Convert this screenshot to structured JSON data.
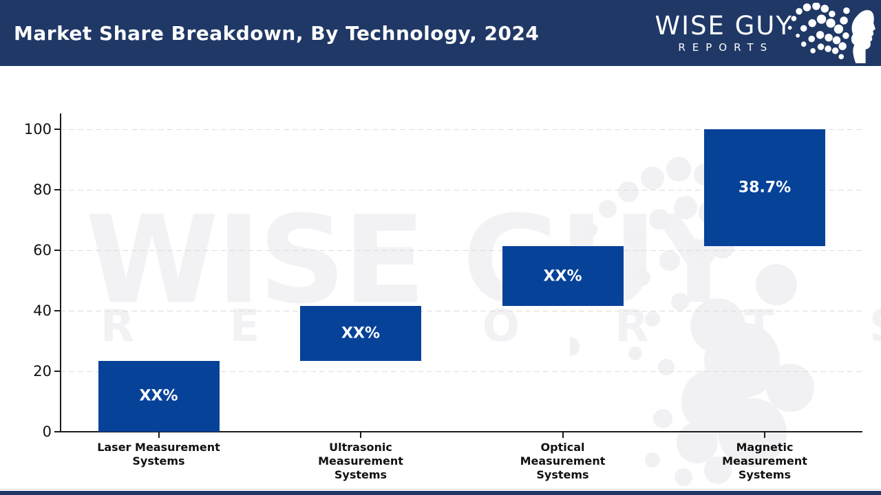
{
  "header": {
    "title": "Market Share Breakdown, By Technology, 2024",
    "logo": {
      "wordmark": "WISE GUY",
      "subtitle": "REPORTS"
    }
  },
  "watermark": {
    "line1": "WISE GUY",
    "line2": "R E P O R T S"
  },
  "colors": {
    "header_navy": "#1f3866",
    "bar_blue": "#074299",
    "bar_label_white": "#ffffff",
    "gridline_gray": "#dcdcdc",
    "axis_black": "#1a1a1a",
    "watermark_gray": "#f2f2f5"
  },
  "chart_data": {
    "type": "bar",
    "variant": "waterfall",
    "title": "Market Share Breakdown, By Technology, 2024",
    "categories": [
      "Laser Measurement Systems",
      "Ultrasonic Measurement Systems",
      "Optical Measurement Systems",
      "Magnetic Measurement Systems"
    ],
    "category_label_lines": [
      [
        "Laser Measurement",
        "Systems"
      ],
      [
        "Ultrasonic",
        "Measurement",
        "Systems"
      ],
      [
        "Optical",
        "Measurement",
        "Systems"
      ],
      [
        "Magnetic",
        "Measurement",
        "Systems"
      ]
    ],
    "segments": [
      {
        "category": "Laser Measurement Systems",
        "base": 0,
        "top": 23.5,
        "label": "XX%"
      },
      {
        "category": "Ultrasonic Measurement Systems",
        "base": 23.5,
        "top": 41.5,
        "label": "XX%"
      },
      {
        "category": "Optical Measurement Systems",
        "base": 41.5,
        "top": 61.3,
        "label": "XX%"
      },
      {
        "category": "Magnetic Measurement Systems",
        "base": 61.3,
        "top": 100,
        "label": "38.7%",
        "value": 38.7
      }
    ],
    "yticks": [
      0,
      20,
      40,
      60,
      80,
      100
    ],
    "ylim": [
      0,
      105
    ],
    "xlabel": "",
    "ylabel": "",
    "grid": "horizontal-dashed",
    "legend": "none",
    "bar_color": "#074299",
    "bar_label_color": "#ffffff"
  }
}
